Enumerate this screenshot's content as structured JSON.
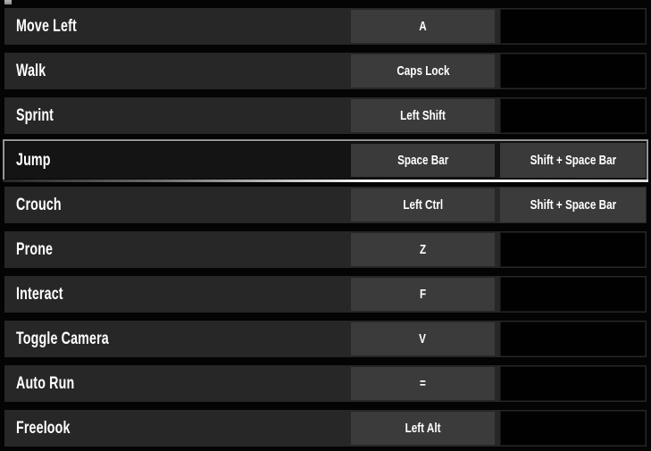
{
  "theme": {
    "page_bg": "#040404",
    "row_bg": "#272727",
    "row_selected_bg": "#141414",
    "key_bg": "#3b3b3b",
    "empty_slot_bg": "#010101",
    "text_color": "#ffffff",
    "selection_border": "#949494",
    "selection_gradient_bright": "#ffffff"
  },
  "keybindings": {
    "rows": [
      {
        "action": "Move Left",
        "primary": "A",
        "secondary": "",
        "selected": false
      },
      {
        "action": "Walk",
        "primary": "Caps Lock",
        "secondary": "",
        "selected": false
      },
      {
        "action": "Sprint",
        "primary": "Left Shift",
        "secondary": "",
        "selected": false
      },
      {
        "action": "Jump",
        "primary": "Space Bar",
        "secondary": "Shift + Space Bar",
        "selected": true
      },
      {
        "action": "Crouch",
        "primary": "Left Ctrl",
        "secondary": "Shift + Space Bar",
        "selected": false
      },
      {
        "action": "Prone",
        "primary": "Z",
        "secondary": "",
        "selected": false
      },
      {
        "action": "Interact",
        "primary": "F",
        "secondary": "",
        "selected": false
      },
      {
        "action": "Toggle Camera",
        "primary": "V",
        "secondary": "",
        "selected": false
      },
      {
        "action": "Auto Run",
        "primary": "=",
        "secondary": "",
        "selected": false
      },
      {
        "action": "Freelook",
        "primary": "Left Alt",
        "secondary": "",
        "selected": false
      }
    ]
  }
}
